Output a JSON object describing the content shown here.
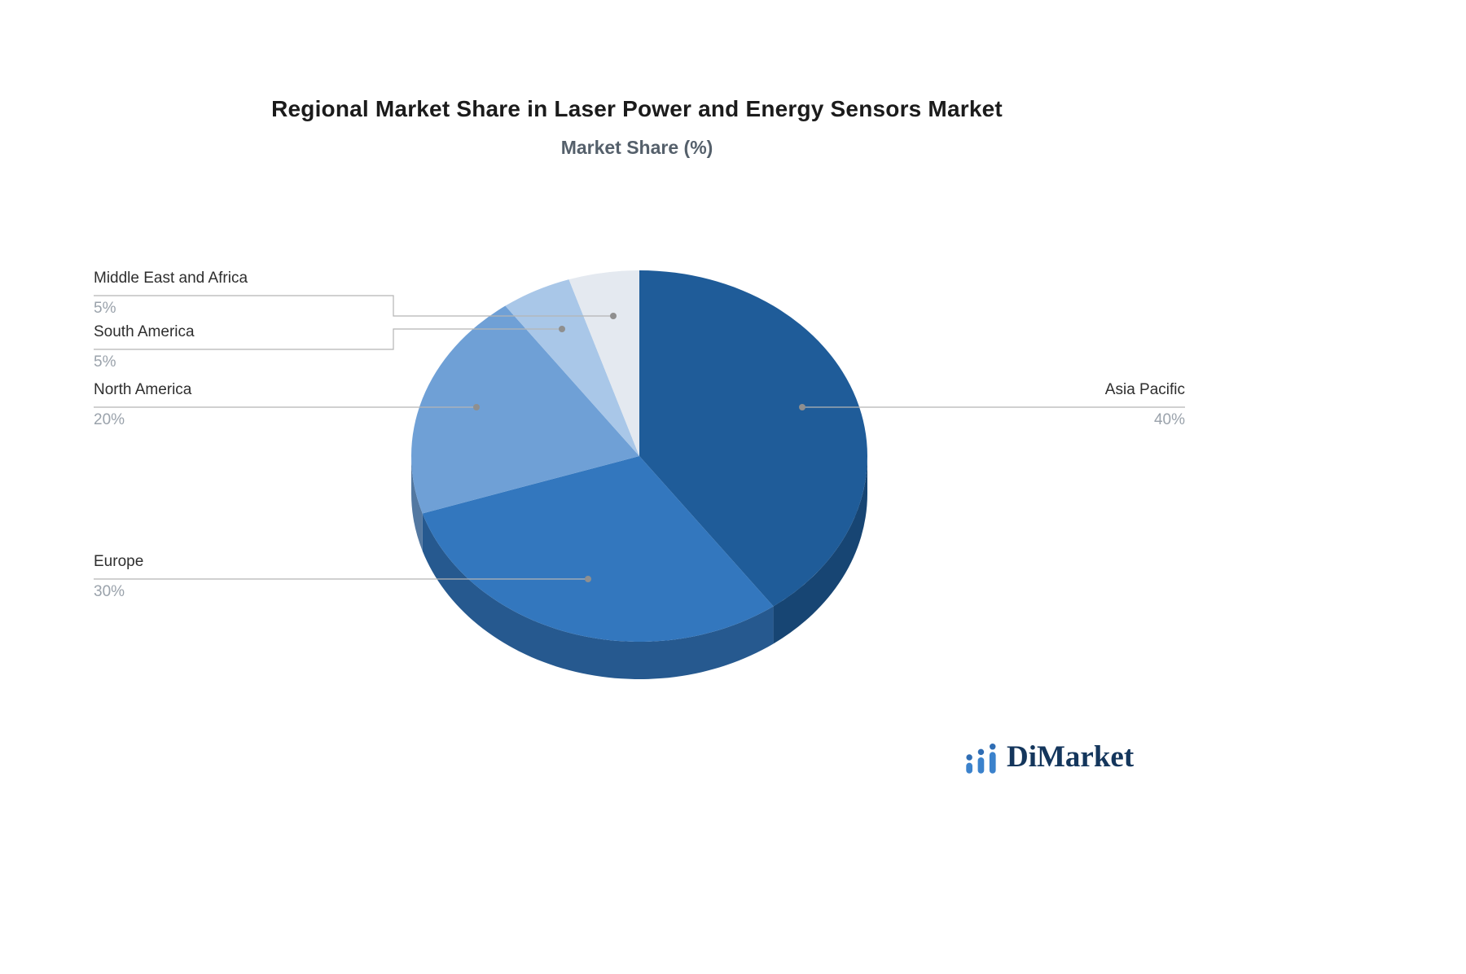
{
  "chart_data": {
    "type": "pie",
    "style": "3d",
    "title": "Regional Market Share in Laser Power and Energy Sensors Market",
    "subtitle": "Market Share (%)",
    "unit": "%",
    "start_angle_deg": 0,
    "direction": "clockwise",
    "categories": [
      "Asia Pacific",
      "Europe",
      "North America",
      "South America",
      "Middle East and Africa"
    ],
    "values": [
      40,
      30,
      20,
      5,
      5
    ],
    "colors": [
      "#1F5C99",
      "#3377BE",
      "#6FA0D6",
      "#A9C7E8",
      "#E4E9F0"
    ],
    "legend_position": "callouts",
    "callouts": [
      {
        "label": "Asia Pacific",
        "value_text": "40%",
        "side": "right"
      },
      {
        "label": "Europe",
        "value_text": "30%",
        "side": "left"
      },
      {
        "label": "North America",
        "value_text": "20%",
        "side": "left"
      },
      {
        "label": "South America",
        "value_text": "5%",
        "side": "left"
      },
      {
        "label": "Middle East and Africa",
        "value_text": "5%",
        "side": "left"
      }
    ]
  },
  "branding": {
    "logo_text": "DiMarket"
  }
}
